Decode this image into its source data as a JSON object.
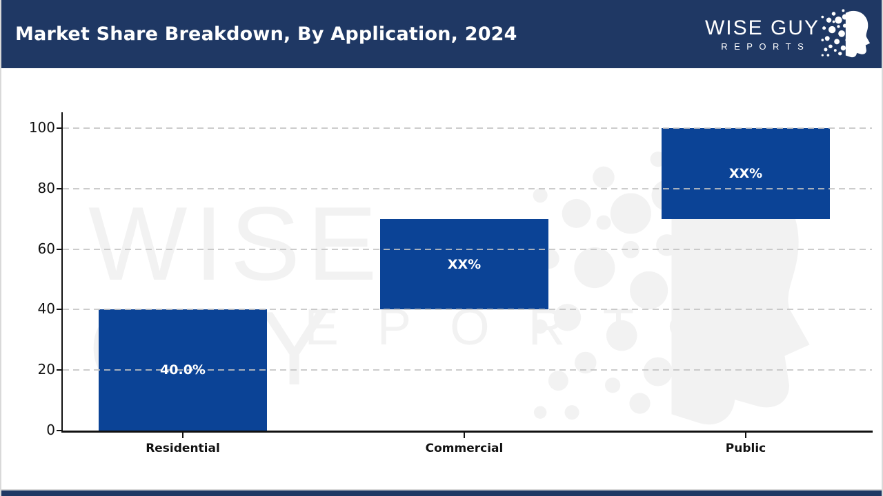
{
  "header": {
    "title": "Market Share Breakdown, By Application, 2024",
    "logo": {
      "line1": "WISE GUY",
      "line2": "REPORTS"
    }
  },
  "watermark": {
    "line1": "WISE GUY",
    "line2": "REPORTS"
  },
  "colors": {
    "header_bg": "#1f3864",
    "bar": "#0b4396",
    "gridline": "#c3c3c3",
    "axis": "#111111",
    "bar_label_text": "#ffffff",
    "watermark": "#f2f2f2"
  },
  "chart_data": {
    "type": "bar",
    "variant": "waterfall-floating-bars",
    "title": "Market Share Breakdown, By Application, 2024",
    "categories": [
      "Residential",
      "Commercial",
      "Public"
    ],
    "bars": [
      {
        "category": "Residential",
        "start": 0,
        "end": 40,
        "label": "40.0%"
      },
      {
        "category": "Commercial",
        "start": 40,
        "end": 70,
        "label": "XX%"
      },
      {
        "category": "Public",
        "start": 70,
        "end": 100,
        "label": "XX%"
      }
    ],
    "xlabel": "",
    "ylabel": "",
    "yticks": [
      0,
      20,
      40,
      60,
      80,
      100
    ],
    "ylim": [
      0,
      105
    ],
    "grid": "horizontal-dashed-drawn-above-bars",
    "legend": "none"
  }
}
